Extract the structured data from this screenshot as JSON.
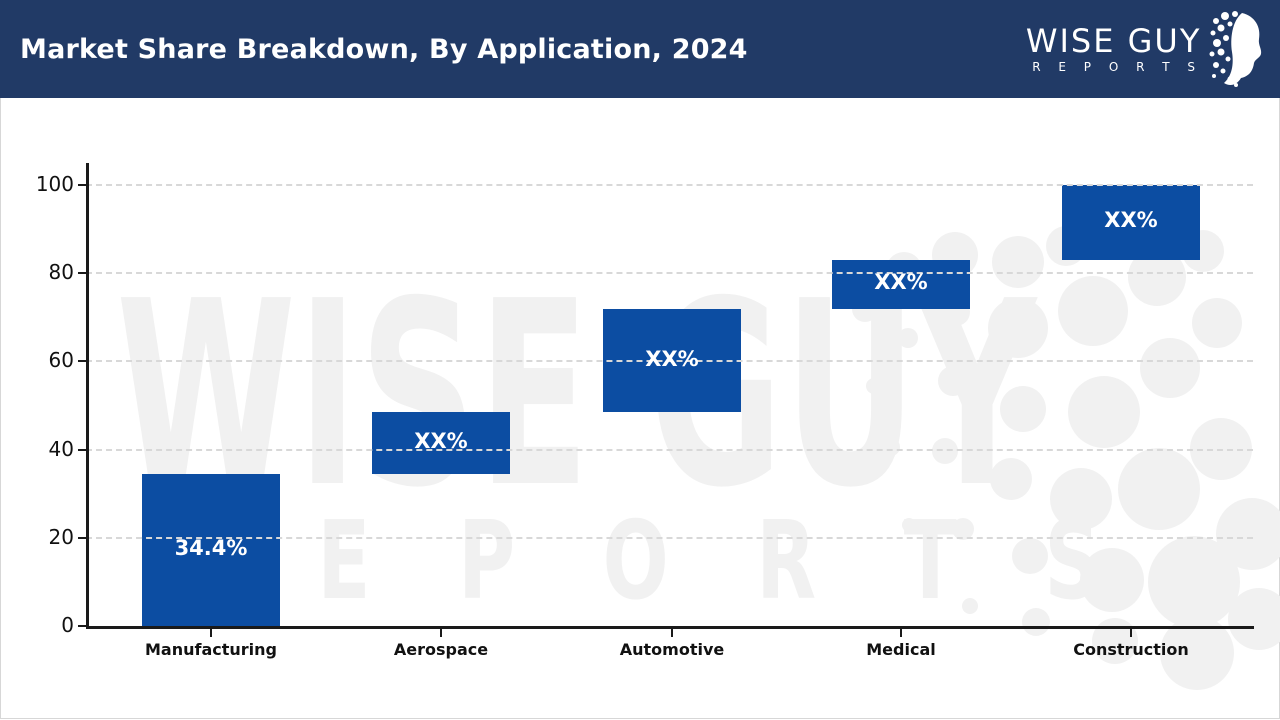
{
  "header": {
    "title": "Market Share Breakdown, By Application, 2024",
    "brand_name": "WISE GUY",
    "brand_sub": "R E P O R T S"
  },
  "watermark": {
    "line1": "WISE GUY",
    "line2": "R E P O R T S"
  },
  "chart_data": {
    "type": "bar",
    "subtype": "waterfall",
    "title": "Market Share Breakdown, By Application, 2024",
    "xlabel": "",
    "ylabel": "",
    "categories": [
      "Manufacturing",
      "Aerospace",
      "Automotive",
      "Medical",
      "Construction"
    ],
    "segments": [
      {
        "category": "Manufacturing",
        "start": 0,
        "end": 34.4,
        "label": "34.4%"
      },
      {
        "category": "Aerospace",
        "start": 34.4,
        "end": 48.5,
        "label": "XX%"
      },
      {
        "category": "Automotive",
        "start": 48.5,
        "end": 71.8,
        "label": "XX%"
      },
      {
        "category": "Medical",
        "start": 71.8,
        "end": 83.1,
        "label": "XX%"
      },
      {
        "category": "Construction",
        "start": 83.1,
        "end": 100,
        "label": "XX%"
      }
    ],
    "yticks": [
      0,
      20,
      40,
      60,
      80,
      100
    ],
    "ylim": [
      0,
      105
    ],
    "grid": true,
    "grid_style": "dashed",
    "legend": "none",
    "bar_color": "#0c4da2",
    "bar_label_color": "#ffffff",
    "axis_color": "#1a1a1a",
    "grid_color": "#d8d8d8",
    "background": "#ffffff"
  },
  "colors": {
    "header_bg": "#213a66",
    "watermark": "#f1f1f1",
    "frame": "#d7d7d7"
  }
}
